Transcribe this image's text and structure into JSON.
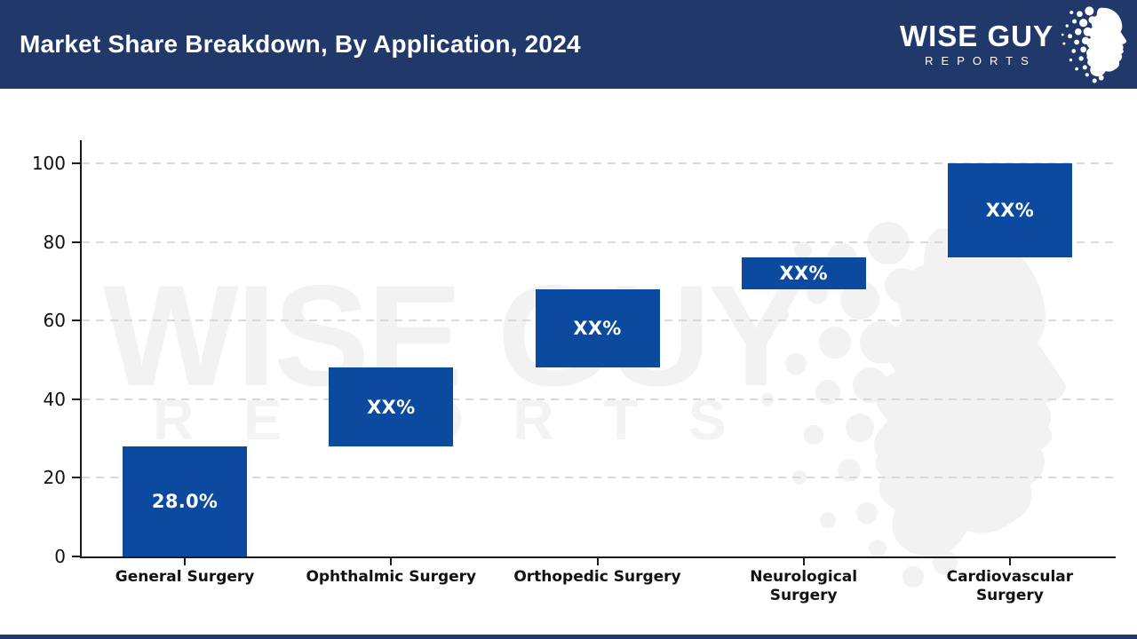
{
  "header": {
    "title": "Market Share Breakdown, By Application, 2024",
    "logo": {
      "name": "WISE GUY",
      "tagline": "REPORTS"
    }
  },
  "watermark": {
    "name": "WISE GUY",
    "tagline": "REPORTS"
  },
  "chart_data": {
    "type": "waterfall",
    "title": "Market Share Breakdown, By Application, 2024",
    "categories": [
      "General Surgery",
      "Ophthalmic Surgery",
      "Orthopedic Surgery",
      "Neurological\nSurgery",
      "Cardiovascular\nSurgery"
    ],
    "segments": [
      {
        "category": "General Surgery",
        "start": 0,
        "end": 28,
        "label": "28.0%"
      },
      {
        "category": "Ophthalmic Surgery",
        "start": 28,
        "end": 48,
        "label": "XX%"
      },
      {
        "category": "Orthopedic Surgery",
        "start": 48,
        "end": 68,
        "label": "XX%"
      },
      {
        "category": "Neurological Surgery",
        "start": 68,
        "end": 76,
        "label": "XX%"
      },
      {
        "category": "Cardiovascular Surgery",
        "start": 76,
        "end": 100,
        "label": "XX%"
      }
    ],
    "xlabel": "",
    "ylabel": "",
    "ylim": [
      0,
      100
    ],
    "yticks": [
      0,
      20,
      40,
      60,
      80,
      100
    ],
    "grid": "horizontal-dashed",
    "legend": "none",
    "colors": {
      "bar": "#0b4a9e",
      "bar_label": "#ffffff",
      "header_bg": "#21386b",
      "axis": "#1a1a1a",
      "gridline": "#d9d9d9",
      "watermark": "#f2f2f2"
    }
  }
}
